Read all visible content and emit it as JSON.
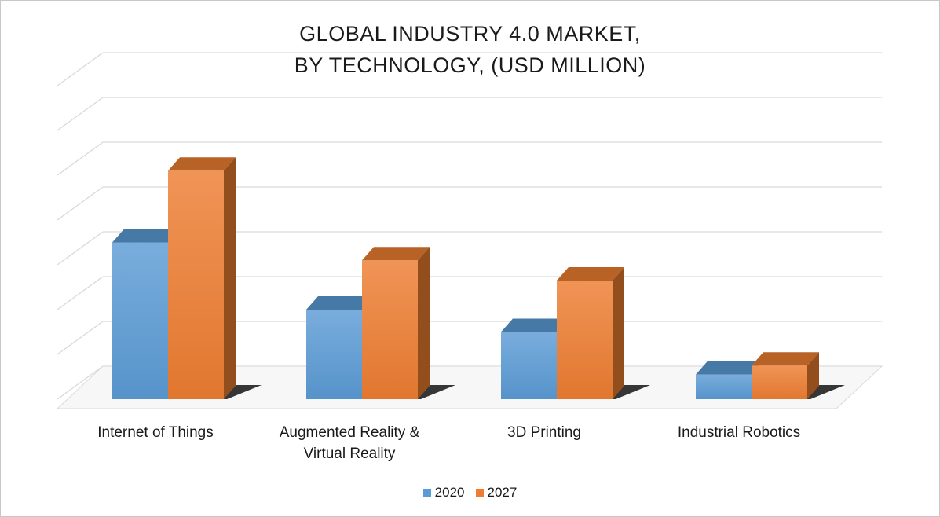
{
  "chart_data": {
    "type": "bar",
    "title_lines": [
      "GLOBAL INDUSTRY 4.0 MARKET,",
      "BY TECHNOLOGY, (USD MILLION)"
    ],
    "categories": [
      "Internet of Things",
      "Augmented Reality & Virtual Reality",
      "3D Printing",
      "Industrial Robotics"
    ],
    "category_label_lines": [
      [
        "Internet of Things"
      ],
      [
        "Augmented Reality &",
        "Virtual Reality"
      ],
      [
        "3D Printing"
      ],
      [
        "Industrial Robotics"
      ]
    ],
    "series": [
      {
        "name": "2020",
        "values": [
          3.5,
          2.0,
          1.5,
          0.55
        ],
        "color": "#5b9bd5"
      },
      {
        "name": "2027",
        "values": [
          5.1,
          3.1,
          2.65,
          0.75
        ],
        "color": "#ed7d31"
      }
    ],
    "ylim": [
      0,
      7
    ],
    "y_tick_labels": "hidden",
    "grid": true,
    "style": "3d-clustered-column",
    "legend_position": "bottom"
  }
}
